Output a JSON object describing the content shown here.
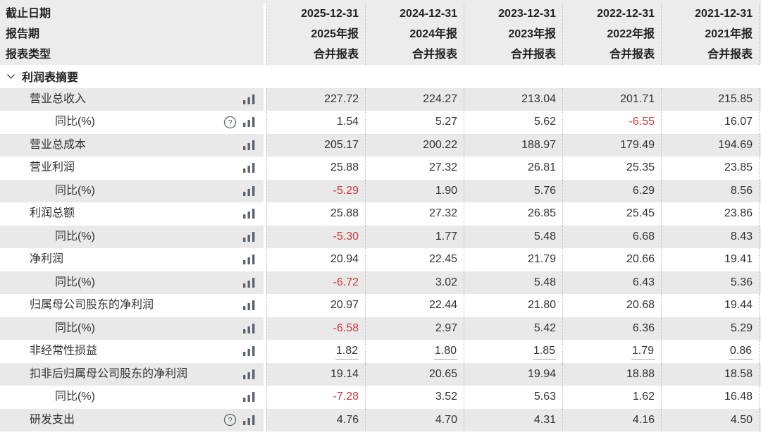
{
  "colors": {
    "negative_value": "#dc3333",
    "row_alt_background": "#e9e9e9",
    "header_background": "#ececec",
    "icon_gray": "#5c6470"
  },
  "table": {
    "header_labels": [
      "截止日期",
      "报告期",
      "报表类型"
    ],
    "columns": [
      {
        "date": "2025-12-31",
        "period": "2025年报",
        "report_type": "合并报表"
      },
      {
        "date": "2024-12-31",
        "period": "2024年报",
        "report_type": "合并报表"
      },
      {
        "date": "2023-12-31",
        "period": "2023年报",
        "report_type": "合并报表"
      },
      {
        "date": "2022-12-31",
        "period": "2022年报",
        "report_type": "合并报表"
      },
      {
        "date": "2021-12-31",
        "period": "2021年报",
        "report_type": "合并报表"
      }
    ],
    "section_title": "利润表摘要",
    "icon_names": {
      "help": "help-circle-icon",
      "bars": "bar-chart-icon",
      "chevron": "chevron-down-icon"
    },
    "rows": [
      {
        "label": "营业总收入",
        "indent": 1,
        "help": false,
        "underline": false,
        "values": [
          "227.72",
          "224.27",
          "213.04",
          "201.71",
          "215.85"
        ]
      },
      {
        "label": "同比(%)",
        "indent": 2,
        "help": true,
        "underline": false,
        "values": [
          "1.54",
          "5.27",
          "5.62",
          "-6.55",
          "16.07"
        ]
      },
      {
        "label": "营业总成本",
        "indent": 1,
        "help": false,
        "underline": false,
        "values": [
          "205.17",
          "200.22",
          "188.97",
          "179.49",
          "194.69"
        ]
      },
      {
        "label": "营业利润",
        "indent": 1,
        "help": false,
        "underline": false,
        "values": [
          "25.88",
          "27.32",
          "26.81",
          "25.35",
          "23.85"
        ]
      },
      {
        "label": "同比(%)",
        "indent": 2,
        "help": false,
        "underline": false,
        "values": [
          "-5.29",
          "1.90",
          "5.76",
          "6.29",
          "8.56"
        ]
      },
      {
        "label": "利润总额",
        "indent": 1,
        "help": false,
        "underline": false,
        "values": [
          "25.88",
          "27.32",
          "26.85",
          "25.45",
          "23.86"
        ]
      },
      {
        "label": "同比(%)",
        "indent": 2,
        "help": false,
        "underline": false,
        "values": [
          "-5.30",
          "1.77",
          "5.48",
          "6.68",
          "8.43"
        ]
      },
      {
        "label": "净利润",
        "indent": 1,
        "help": false,
        "underline": false,
        "values": [
          "20.94",
          "22.45",
          "21.79",
          "20.66",
          "19.41"
        ]
      },
      {
        "label": "同比(%)",
        "indent": 2,
        "help": false,
        "underline": false,
        "values": [
          "-6.72",
          "3.02",
          "5.48",
          "6.43",
          "5.36"
        ]
      },
      {
        "label": "归属母公司股东的净利润",
        "indent": 1,
        "help": false,
        "underline": false,
        "values": [
          "20.97",
          "22.44",
          "21.80",
          "20.68",
          "19.44"
        ]
      },
      {
        "label": "同比(%)",
        "indent": 2,
        "help": false,
        "underline": false,
        "values": [
          "-6.58",
          "2.97",
          "5.42",
          "6.36",
          "5.29"
        ]
      },
      {
        "label": "非经常性损益",
        "indent": 1,
        "help": false,
        "underline": true,
        "values": [
          "1.82",
          "1.80",
          "1.85",
          "1.79",
          "0.86"
        ]
      },
      {
        "label": "扣非后归属母公司股东的净利润",
        "indent": 1,
        "help": false,
        "underline": false,
        "values": [
          "19.14",
          "20.65",
          "19.94",
          "18.88",
          "18.58"
        ]
      },
      {
        "label": "同比(%)",
        "indent": 2,
        "help": false,
        "underline": false,
        "values": [
          "-7.28",
          "3.52",
          "5.63",
          "1.62",
          "16.48"
        ]
      },
      {
        "label": "研发支出",
        "indent": 1,
        "help": true,
        "underline": false,
        "values": [
          "4.76",
          "4.70",
          "4.31",
          "4.16",
          "4.50"
        ]
      }
    ]
  }
}
